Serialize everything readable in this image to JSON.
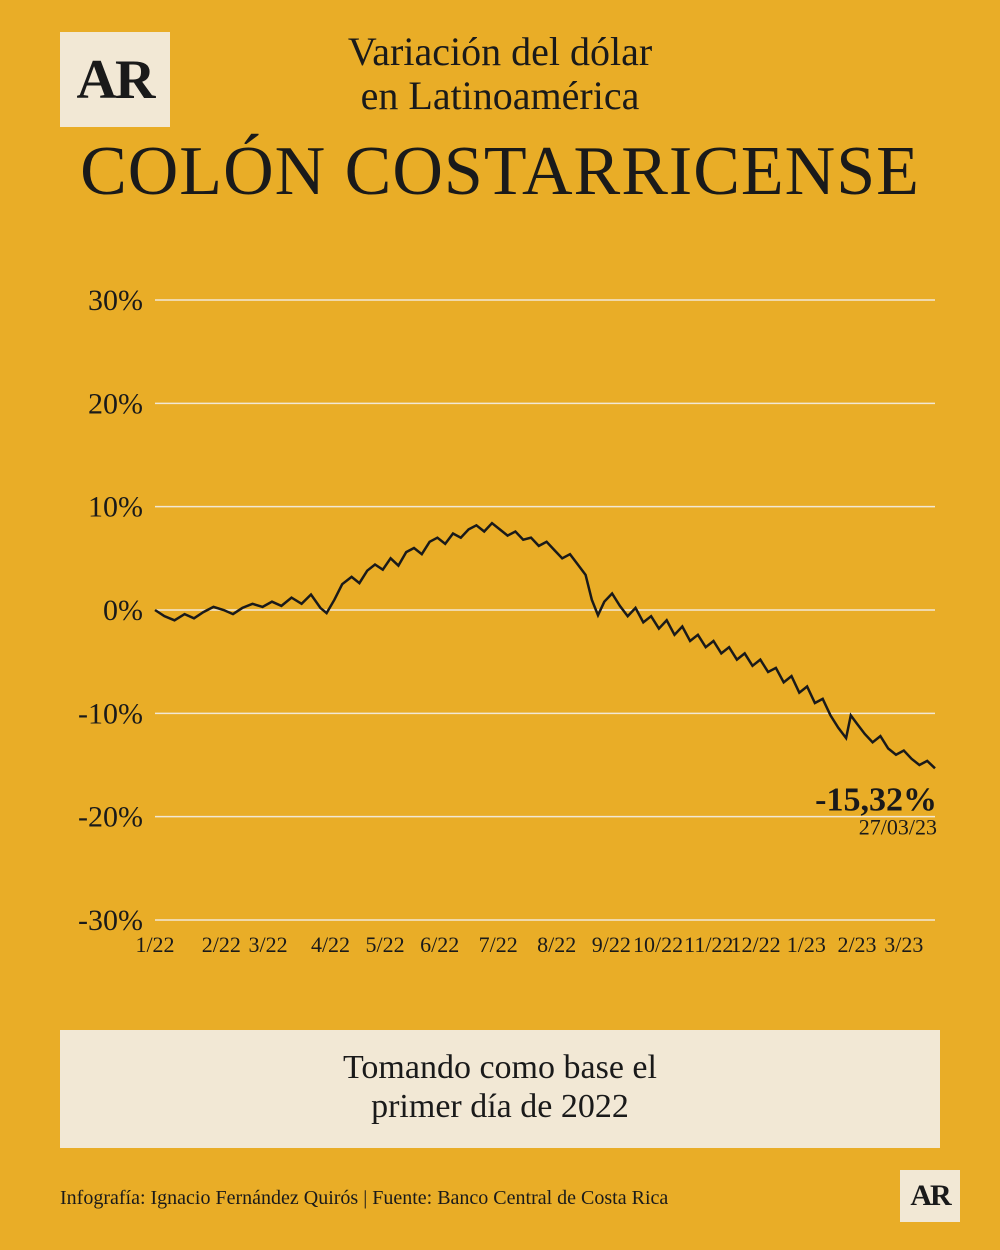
{
  "logo_text": "AR",
  "header": {
    "subtitle_l1": "Variación del dólar",
    "subtitle_l2": "en Latinoamérica",
    "title": "COLÓN COSTARRICENSE"
  },
  "chart": {
    "type": "line",
    "background_color": "#e9ad27",
    "grid_color": "#f2e8d5",
    "line_color": "#1a1a1a",
    "line_width": 2.5,
    "ylim": [
      -30,
      30
    ],
    "ytick_step": 10,
    "y_ticks": [
      {
        "v": 30,
        "label": "30%"
      },
      {
        "v": 20,
        "label": "20%"
      },
      {
        "v": 10,
        "label": "10%"
      },
      {
        "v": 0,
        "label": "0%"
      },
      {
        "v": -10,
        "label": "-10%"
      },
      {
        "v": -20,
        "label": "-20%"
      },
      {
        "v": -30,
        "label": "-30%"
      }
    ],
    "x_ticks": [
      "1/22",
      "2/22",
      "3/22",
      "4/22",
      "5/22",
      "6/22",
      "7/22",
      "8/22",
      "9/22",
      "10/22",
      "11/22",
      "12/22",
      "1/23",
      "2/23",
      "3/23"
    ],
    "x_tick_positions": [
      0.0,
      0.085,
      0.145,
      0.225,
      0.295,
      0.365,
      0.44,
      0.515,
      0.585,
      0.645,
      0.71,
      0.77,
      0.835,
      0.9,
      0.96
    ],
    "series": [
      {
        "x": 0.0,
        "y": 0.0
      },
      {
        "x": 0.012,
        "y": -0.6
      },
      {
        "x": 0.025,
        "y": -1.0
      },
      {
        "x": 0.038,
        "y": -0.4
      },
      {
        "x": 0.05,
        "y": -0.8
      },
      {
        "x": 0.062,
        "y": -0.2
      },
      {
        "x": 0.075,
        "y": 0.3
      },
      {
        "x": 0.088,
        "y": 0.0
      },
      {
        "x": 0.1,
        "y": -0.4
      },
      {
        "x": 0.112,
        "y": 0.2
      },
      {
        "x": 0.125,
        "y": 0.6
      },
      {
        "x": 0.138,
        "y": 0.3
      },
      {
        "x": 0.15,
        "y": 0.8
      },
      {
        "x": 0.162,
        "y": 0.4
      },
      {
        "x": 0.175,
        "y": 1.2
      },
      {
        "x": 0.188,
        "y": 0.6
      },
      {
        "x": 0.2,
        "y": 1.5
      },
      {
        "x": 0.212,
        "y": 0.2
      },
      {
        "x": 0.22,
        "y": -0.3
      },
      {
        "x": 0.23,
        "y": 1.0
      },
      {
        "x": 0.24,
        "y": 2.5
      },
      {
        "x": 0.252,
        "y": 3.2
      },
      {
        "x": 0.262,
        "y": 2.6
      },
      {
        "x": 0.272,
        "y": 3.8
      },
      {
        "x": 0.282,
        "y": 4.4
      },
      {
        "x": 0.292,
        "y": 3.9
      },
      {
        "x": 0.302,
        "y": 5.0
      },
      {
        "x": 0.312,
        "y": 4.3
      },
      {
        "x": 0.322,
        "y": 5.6
      },
      {
        "x": 0.332,
        "y": 6.0
      },
      {
        "x": 0.342,
        "y": 5.4
      },
      {
        "x": 0.352,
        "y": 6.6
      },
      {
        "x": 0.362,
        "y": 7.0
      },
      {
        "x": 0.372,
        "y": 6.4
      },
      {
        "x": 0.382,
        "y": 7.4
      },
      {
        "x": 0.392,
        "y": 7.0
      },
      {
        "x": 0.402,
        "y": 7.8
      },
      {
        "x": 0.412,
        "y": 8.2
      },
      {
        "x": 0.422,
        "y": 7.6
      },
      {
        "x": 0.432,
        "y": 8.4
      },
      {
        "x": 0.442,
        "y": 7.8
      },
      {
        "x": 0.452,
        "y": 7.2
      },
      {
        "x": 0.462,
        "y": 7.6
      },
      {
        "x": 0.472,
        "y": 6.8
      },
      {
        "x": 0.482,
        "y": 7.0
      },
      {
        "x": 0.492,
        "y": 6.2
      },
      {
        "x": 0.502,
        "y": 6.6
      },
      {
        "x": 0.512,
        "y": 5.8
      },
      {
        "x": 0.522,
        "y": 5.0
      },
      {
        "x": 0.532,
        "y": 5.4
      },
      {
        "x": 0.542,
        "y": 4.4
      },
      {
        "x": 0.552,
        "y": 3.4
      },
      {
        "x": 0.56,
        "y": 1.0
      },
      {
        "x": 0.568,
        "y": -0.5
      },
      {
        "x": 0.576,
        "y": 0.8
      },
      {
        "x": 0.586,
        "y": 1.6
      },
      {
        "x": 0.596,
        "y": 0.4
      },
      {
        "x": 0.606,
        "y": -0.6
      },
      {
        "x": 0.616,
        "y": 0.2
      },
      {
        "x": 0.626,
        "y": -1.2
      },
      {
        "x": 0.636,
        "y": -0.6
      },
      {
        "x": 0.646,
        "y": -1.8
      },
      {
        "x": 0.656,
        "y": -1.0
      },
      {
        "x": 0.666,
        "y": -2.4
      },
      {
        "x": 0.676,
        "y": -1.6
      },
      {
        "x": 0.686,
        "y": -3.0
      },
      {
        "x": 0.696,
        "y": -2.4
      },
      {
        "x": 0.706,
        "y": -3.6
      },
      {
        "x": 0.716,
        "y": -3.0
      },
      {
        "x": 0.726,
        "y": -4.2
      },
      {
        "x": 0.736,
        "y": -3.6
      },
      {
        "x": 0.746,
        "y": -4.8
      },
      {
        "x": 0.756,
        "y": -4.2
      },
      {
        "x": 0.766,
        "y": -5.4
      },
      {
        "x": 0.776,
        "y": -4.8
      },
      {
        "x": 0.786,
        "y": -6.0
      },
      {
        "x": 0.796,
        "y": -5.6
      },
      {
        "x": 0.806,
        "y": -7.0
      },
      {
        "x": 0.816,
        "y": -6.4
      },
      {
        "x": 0.826,
        "y": -8.0
      },
      {
        "x": 0.836,
        "y": -7.4
      },
      {
        "x": 0.846,
        "y": -9.0
      },
      {
        "x": 0.856,
        "y": -8.6
      },
      {
        "x": 0.866,
        "y": -10.2
      },
      {
        "x": 0.876,
        "y": -11.4
      },
      {
        "x": 0.886,
        "y": -12.4
      },
      {
        "x": 0.892,
        "y": -10.2
      },
      {
        "x": 0.9,
        "y": -11.0
      },
      {
        "x": 0.91,
        "y": -12.0
      },
      {
        "x": 0.92,
        "y": -12.8
      },
      {
        "x": 0.93,
        "y": -12.2
      },
      {
        "x": 0.94,
        "y": -13.4
      },
      {
        "x": 0.95,
        "y": -14.0
      },
      {
        "x": 0.96,
        "y": -13.6
      },
      {
        "x": 0.97,
        "y": -14.4
      },
      {
        "x": 0.98,
        "y": -15.0
      },
      {
        "x": 0.99,
        "y": -14.6
      },
      {
        "x": 1.0,
        "y": -15.32
      }
    ],
    "callout": {
      "value": "-15,32%",
      "date": "27/03/23"
    },
    "y_label_fontsize": 30,
    "x_label_fontsize": 22,
    "callout_val_fontsize": 34,
    "callout_date_fontsize": 22
  },
  "note": {
    "line1": "Tomando como base el",
    "line2": "primer día de 2022",
    "band_color": "#f2e8d5",
    "fontsize": 34
  },
  "credits": "Infografía: Ignacio Fernández Quirós | Fuente: Banco Central de Costa Rica"
}
